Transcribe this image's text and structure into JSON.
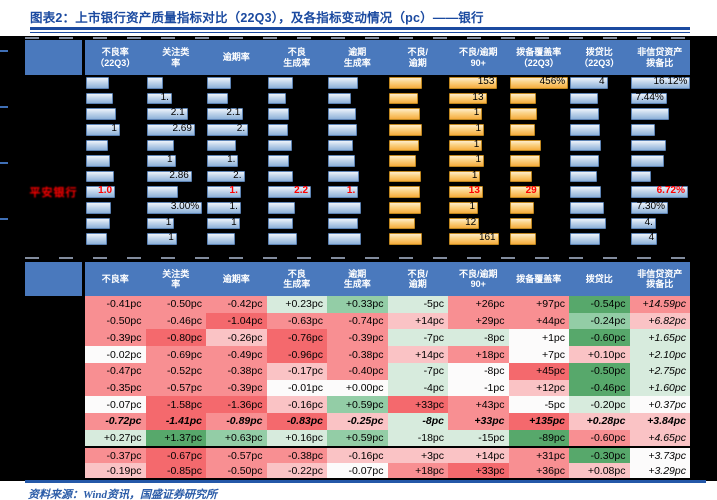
{
  "title": "图表2：上市银行资产质量指标对比（22Q3），及各指标变动情况（pc）——银行",
  "source_note": "资料来源：Wind资讯，国盛证券研究所",
  "colors": {
    "header_bg": "#4a79bd",
    "title": "#1b4aa0",
    "source": "#2b5ca8",
    "highlight_text": "#ff0000",
    "bar_blue": "#8fb2d9",
    "bar_orange": "#f6ad3e",
    "scale": {
      "r3": "#f4696d",
      "r2": "#f88f92",
      "r1": "#fac3c5",
      "w": "#fcfbfb",
      "g1": "#d7ebdd",
      "g2": "#93cda6",
      "g3": "#57a86b"
    }
  },
  "top_table": {
    "columns": [
      "不良率\n（22Q3）",
      "关注类\n率",
      "逾期率",
      "不良\n生成率",
      "逾期\n生成率",
      "不良/\n逾期",
      "不良/逾期\n90+",
      "拨备覆盖率\n（22Q3）",
      "拨贷比\n（22Q3）",
      "非信贷资产\n拨备比"
    ],
    "bar_types": [
      "b",
      "b",
      "b",
      "b",
      "b",
      "o",
      "o",
      "o",
      "b",
      "b"
    ],
    "highlight_row_label": "平安银行",
    "rows": [
      {
        "highlight": false,
        "cells": [
          [
            0.38,
            ""
          ],
          [
            0.28,
            ""
          ],
          [
            0.4,
            ""
          ],
          [
            0.42,
            ""
          ],
          [
            0.5,
            ""
          ],
          [
            0.55,
            ""
          ],
          [
            0.8,
            "153"
          ],
          [
            0.97,
            "456%"
          ],
          [
            0.62,
            "4"
          ],
          [
            0.99,
            "16.12%"
          ]
        ]
      },
      {
        "highlight": false,
        "cells": [
          [
            0.44,
            ""
          ],
          [
            0.42,
            "1."
          ],
          [
            0.34,
            ""
          ],
          [
            0.3,
            ""
          ],
          [
            0.38,
            ""
          ],
          [
            0.48,
            ""
          ],
          [
            0.62,
            "13"
          ],
          [
            0.44,
            ""
          ],
          [
            0.46,
            ""
          ],
          [
            0.6,
            "7.44%"
          ]
        ]
      },
      {
        "highlight": false,
        "cells": [
          [
            0.5,
            ""
          ],
          [
            0.68,
            "2.1"
          ],
          [
            0.6,
            "2.1"
          ],
          [
            0.36,
            ""
          ],
          [
            0.46,
            ""
          ],
          [
            0.52,
            ""
          ],
          [
            0.55,
            "1"
          ],
          [
            0.46,
            ""
          ],
          [
            0.48,
            ""
          ],
          [
            0.64,
            ""
          ]
        ]
      },
      {
        "highlight": false,
        "cells": [
          [
            0.56,
            "1"
          ],
          [
            0.8,
            "2.69"
          ],
          [
            0.68,
            "2."
          ],
          [
            0.34,
            ""
          ],
          [
            0.48,
            ""
          ],
          [
            0.55,
            ""
          ],
          [
            0.58,
            "1"
          ],
          [
            0.42,
            ""
          ],
          [
            0.5,
            ""
          ],
          [
            0.4,
            ""
          ]
        ]
      },
      {
        "highlight": false,
        "cells": [
          [
            0.36,
            ""
          ],
          [
            0.46,
            ""
          ],
          [
            0.48,
            ""
          ],
          [
            0.4,
            ""
          ],
          [
            0.42,
            ""
          ],
          [
            0.5,
            ""
          ],
          [
            0.55,
            "1"
          ],
          [
            0.52,
            ""
          ],
          [
            0.52,
            ""
          ],
          [
            0.58,
            ""
          ]
        ]
      },
      {
        "highlight": false,
        "cells": [
          [
            0.4,
            ""
          ],
          [
            0.48,
            "1"
          ],
          [
            0.52,
            "1."
          ],
          [
            0.36,
            ""
          ],
          [
            0.44,
            ""
          ],
          [
            0.46,
            ""
          ],
          [
            0.58,
            "1"
          ],
          [
            0.5,
            ""
          ],
          [
            0.48,
            ""
          ],
          [
            0.55,
            ""
          ]
        ]
      },
      {
        "highlight": false,
        "cells": [
          [
            0.46,
            ""
          ],
          [
            0.75,
            "2.86"
          ],
          [
            0.62,
            "2."
          ],
          [
            0.42,
            ""
          ],
          [
            0.52,
            ""
          ],
          [
            0.54,
            ""
          ],
          [
            0.52,
            "1"
          ],
          [
            0.38,
            ""
          ],
          [
            0.44,
            ""
          ],
          [
            0.34,
            ""
          ]
        ]
      },
      {
        "highlight": true,
        "cells": [
          [
            0.48,
            "1.0"
          ],
          [
            0.52,
            ""
          ],
          [
            0.56,
            "1."
          ],
          [
            0.72,
            "2.2"
          ],
          [
            0.5,
            "1."
          ],
          [
            0.52,
            ""
          ],
          [
            0.56,
            "13"
          ],
          [
            0.5,
            "29"
          ],
          [
            0.52,
            ""
          ],
          [
            0.95,
            "6.72%"
          ]
        ]
      },
      {
        "highlight": false,
        "cells": [
          [
            0.42,
            ""
          ],
          [
            0.92,
            "3.00%"
          ],
          [
            0.56,
            "1."
          ],
          [
            0.46,
            ""
          ],
          [
            0.54,
            ""
          ],
          [
            0.54,
            ""
          ],
          [
            0.48,
            "1"
          ],
          [
            0.4,
            ""
          ],
          [
            0.56,
            ""
          ],
          [
            0.62,
            "7.30%"
          ]
        ]
      },
      {
        "highlight": false,
        "cells": [
          [
            0.4,
            ""
          ],
          [
            0.46,
            "1"
          ],
          [
            0.54,
            "1"
          ],
          [
            0.42,
            ""
          ],
          [
            0.5,
            ""
          ],
          [
            0.44,
            ""
          ],
          [
            0.5,
            "12"
          ],
          [
            0.38,
            ""
          ],
          [
            0.6,
            ""
          ],
          [
            0.42,
            "4."
          ]
        ]
      },
      {
        "highlight": false,
        "cells": [
          [
            0.34,
            ""
          ],
          [
            0.5,
            "1"
          ],
          [
            0.46,
            ""
          ],
          [
            0.48,
            ""
          ],
          [
            0.54,
            ""
          ],
          [
            0.56,
            ""
          ],
          [
            0.82,
            "161"
          ],
          [
            0.44,
            ""
          ],
          [
            0.5,
            ""
          ],
          [
            0.44,
            "4"
          ]
        ]
      }
    ]
  },
  "bottom_table": {
    "columns": [
      "不良率",
      "关注类\n率",
      "逾期率",
      "不良\n生成率",
      "逾期\n生成率",
      "不良/\n逾期",
      "不良/逾期\n90+",
      "拨备覆盖率",
      "拨贷比",
      "非信贷资产\n拨备比"
    ],
    "rows": [
      {
        "bold": false,
        "sep": false,
        "values": [
          "-0.41pc",
          "-0.50pc",
          "-0.42pc",
          "+0.23pc",
          "+0.33pc",
          "-5pc",
          "+26pc",
          "+97pc",
          "-0.54pc",
          "+14.59pc"
        ],
        "colors": [
          "r2",
          "r2",
          "r2",
          "g1",
          "g2",
          "g1",
          "r2",
          "r2",
          "g3",
          "r2"
        ]
      },
      {
        "bold": false,
        "sep": false,
        "values": [
          "-0.50pc",
          "-0.46pc",
          "-1.04pc",
          "-0.63pc",
          "-0.74pc",
          "+14pc",
          "+29pc",
          "+44pc",
          "-0.24pc",
          "+6.82pc"
        ],
        "colors": [
          "r2",
          "r2",
          "r3",
          "r2",
          "r2",
          "r1",
          "r2",
          "r2",
          "g2",
          "r1"
        ]
      },
      {
        "bold": false,
        "sep": false,
        "values": [
          "-0.39pc",
          "-0.80pc",
          "-0.26pc",
          "-0.76pc",
          "-0.39pc",
          "-7pc",
          "-8pc",
          "+1pc",
          "-0.60pc",
          "+1.65pc"
        ],
        "colors": [
          "r2",
          "r3",
          "r1",
          "r3",
          "r2",
          "g1",
          "g1",
          "w",
          "g3",
          "g1"
        ]
      },
      {
        "bold": false,
        "sep": false,
        "values": [
          "-0.02pc",
          "-0.69pc",
          "-0.49pc",
          "-0.96pc",
          "-0.38pc",
          "+14pc",
          "+18pc",
          "+7pc",
          "+0.10pc",
          "+2.10pc"
        ],
        "colors": [
          "w",
          "r2",
          "r2",
          "r3",
          "r2",
          "r1",
          "r2",
          "w",
          "r1",
          "g1"
        ]
      },
      {
        "bold": false,
        "sep": false,
        "values": [
          "-0.47pc",
          "-0.52pc",
          "-0.38pc",
          "-0.17pc",
          "-0.40pc",
          "-7pc",
          "-8pc",
          "+45pc",
          "-0.50pc",
          "+2.75pc"
        ],
        "colors": [
          "r2",
          "r2",
          "r2",
          "r1",
          "r2",
          "g1",
          "w",
          "r3",
          "g3",
          "g1"
        ]
      },
      {
        "bold": false,
        "sep": false,
        "values": [
          "-0.35pc",
          "-0.57pc",
          "-0.39pc",
          "-0.01pc",
          "+0.00pc",
          "-4pc",
          "-1pc",
          "+12pc",
          "-0.46pc",
          "+1.60pc"
        ],
        "colors": [
          "r2",
          "r2",
          "r2",
          "w",
          "w",
          "g1",
          "w",
          "r1",
          "g3",
          "g1"
        ]
      },
      {
        "bold": false,
        "sep": false,
        "values": [
          "-0.07pc",
          "-1.58pc",
          "-1.36pc",
          "-0.16pc",
          "+0.59pc",
          "+33pc",
          "+43pc",
          "-5pc",
          "-0.20pc",
          "+0.37pc"
        ],
        "colors": [
          "w",
          "r3",
          "r3",
          "r1",
          "g2",
          "r3",
          "r2",
          "w",
          "g1",
          "w"
        ]
      },
      {
        "bold": true,
        "sep": false,
        "values": [
          "-0.72pc",
          "-1.41pc",
          "-0.89pc",
          "-0.83pc",
          "-0.25pc",
          "-8pc",
          "+33pc",
          "+135pc",
          "+0.28pc",
          "+3.84pc"
        ],
        "colors": [
          "r2",
          "r3",
          "r2",
          "r3",
          "r1",
          "g1",
          "r2",
          "r3",
          "r1",
          "r1"
        ]
      },
      {
        "bold": false,
        "sep": false,
        "values": [
          "+0.27pc",
          "+1.37pc",
          "+0.63pc",
          "+0.16pc",
          "+0.59pc",
          "-18pc",
          "-15pc",
          "-89pc",
          "-0.60pc",
          "+4.65pc"
        ],
        "colors": [
          "g1",
          "g3",
          "g2",
          "g1",
          "g2",
          "g1",
          "g1",
          "g3",
          "r2",
          "r1"
        ]
      },
      {
        "bold": false,
        "sep": true,
        "values": [
          "-0.37pc",
          "-0.67pc",
          "-0.57pc",
          "-0.38pc",
          "-0.16pc",
          "+3pc",
          "+14pc",
          "+31pc",
          "-0.30pc",
          "+3.73pc"
        ],
        "colors": [
          "r2",
          "r3",
          "r2",
          "r2",
          "r1",
          "r1",
          "r1",
          "r2",
          "g3",
          "w"
        ]
      },
      {
        "bold": false,
        "sep": false,
        "values": [
          "-0.19pc",
          "-0.85pc",
          "-0.50pc",
          "-0.22pc",
          "-0.07pc",
          "+18pc",
          "+33pc",
          "+36pc",
          "+0.08pc",
          "+3.29pc"
        ],
        "colors": [
          "r1",
          "r3",
          "r2",
          "r1",
          "w",
          "r2",
          "r3",
          "r2",
          "r1",
          "w"
        ]
      }
    ]
  }
}
